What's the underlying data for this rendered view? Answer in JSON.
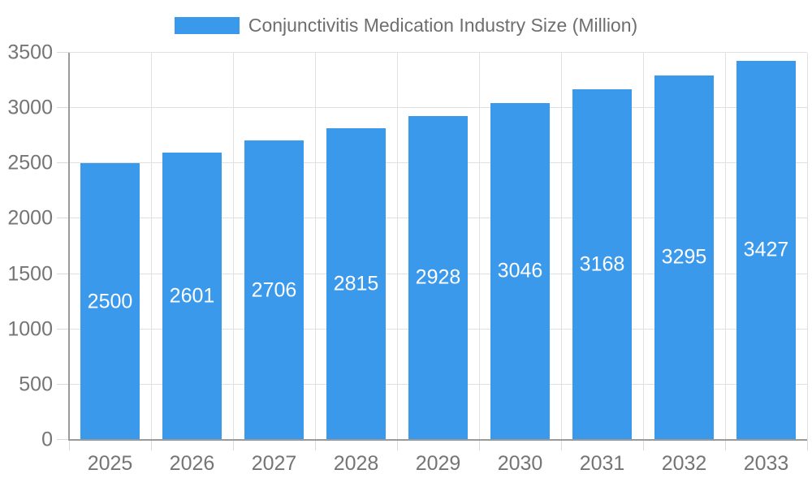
{
  "chart_data": {
    "type": "bar",
    "title": "",
    "legend": "Conjunctivitis Medication Industry Size (Million)",
    "legend_position": "top-center",
    "categories": [
      "2025",
      "2026",
      "2027",
      "2028",
      "2029",
      "2030",
      "2031",
      "2032",
      "2033"
    ],
    "values": [
      2500,
      2601,
      2706,
      2815,
      2928,
      3046,
      3168,
      3295,
      3427
    ],
    "xlabel": "",
    "ylabel": "",
    "ylim": [
      0,
      3500
    ],
    "yticks": [
      0,
      500,
      1000,
      1500,
      2000,
      2500,
      3000,
      3500
    ],
    "grid": "horizontal and vertical, light gray",
    "bar_label_position": "inside-center, white",
    "colors": {
      "bar": "#3B99EC",
      "bar_label": "#FFFFFF",
      "grid": "#E0E0E0",
      "axis": "#9A9A9A",
      "tick": "#D9D9D9",
      "tick_text": "#757575",
      "legend_text": "#6E6E6E",
      "background": "#FFFFFF"
    }
  }
}
